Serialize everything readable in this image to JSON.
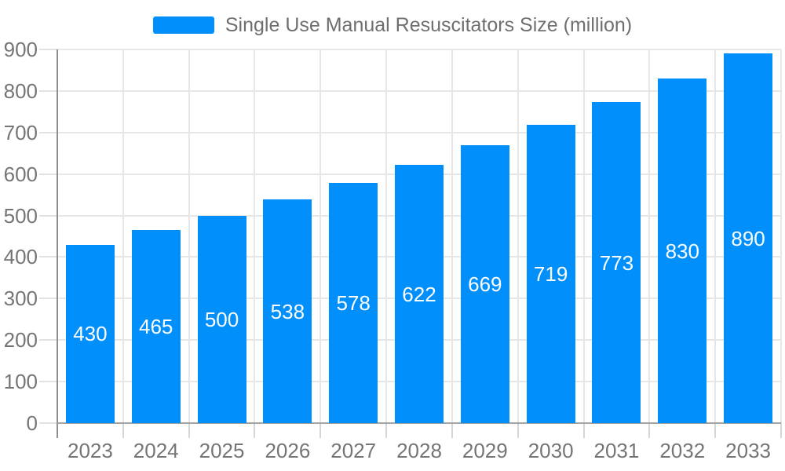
{
  "legend": {
    "label": "Single Use Manual Resuscitators Size (million)",
    "swatch_color": "#008FFB"
  },
  "colors": {
    "bar": "#008FFB",
    "value_label": "#FFFFFF",
    "grid": "#E7E7E7",
    "axis": "#9B9B9B",
    "tick_label": "#757575",
    "legend_text": "#6F6F6F"
  },
  "chart_data": {
    "type": "bar",
    "title": "Single Use Manual Resuscitators Size (million)",
    "series": [
      {
        "name": "Single Use Manual Resuscitators Size (million)",
        "values": [
          430,
          465,
          500,
          538,
          578,
          622,
          669,
          719,
          773,
          830,
          890
        ]
      }
    ],
    "categories": [
      "2023",
      "2024",
      "2025",
      "2026",
      "2027",
      "2028",
      "2029",
      "2030",
      "2031",
      "2032",
      "2033"
    ],
    "values": [
      430,
      465,
      500,
      538,
      578,
      622,
      669,
      719,
      773,
      830,
      890
    ],
    "value_labels": [
      "430",
      "465",
      "500",
      "538",
      "578",
      "622",
      "669",
      "719",
      "773",
      "830",
      "890"
    ],
    "xlabel": "",
    "ylabel": "",
    "ylim": [
      0,
      900
    ],
    "yticks": [
      0,
      100,
      200,
      300,
      400,
      500,
      600,
      700,
      800,
      900
    ],
    "grid": true,
    "legend_position": "top",
    "bar_color": "#008FFB"
  }
}
